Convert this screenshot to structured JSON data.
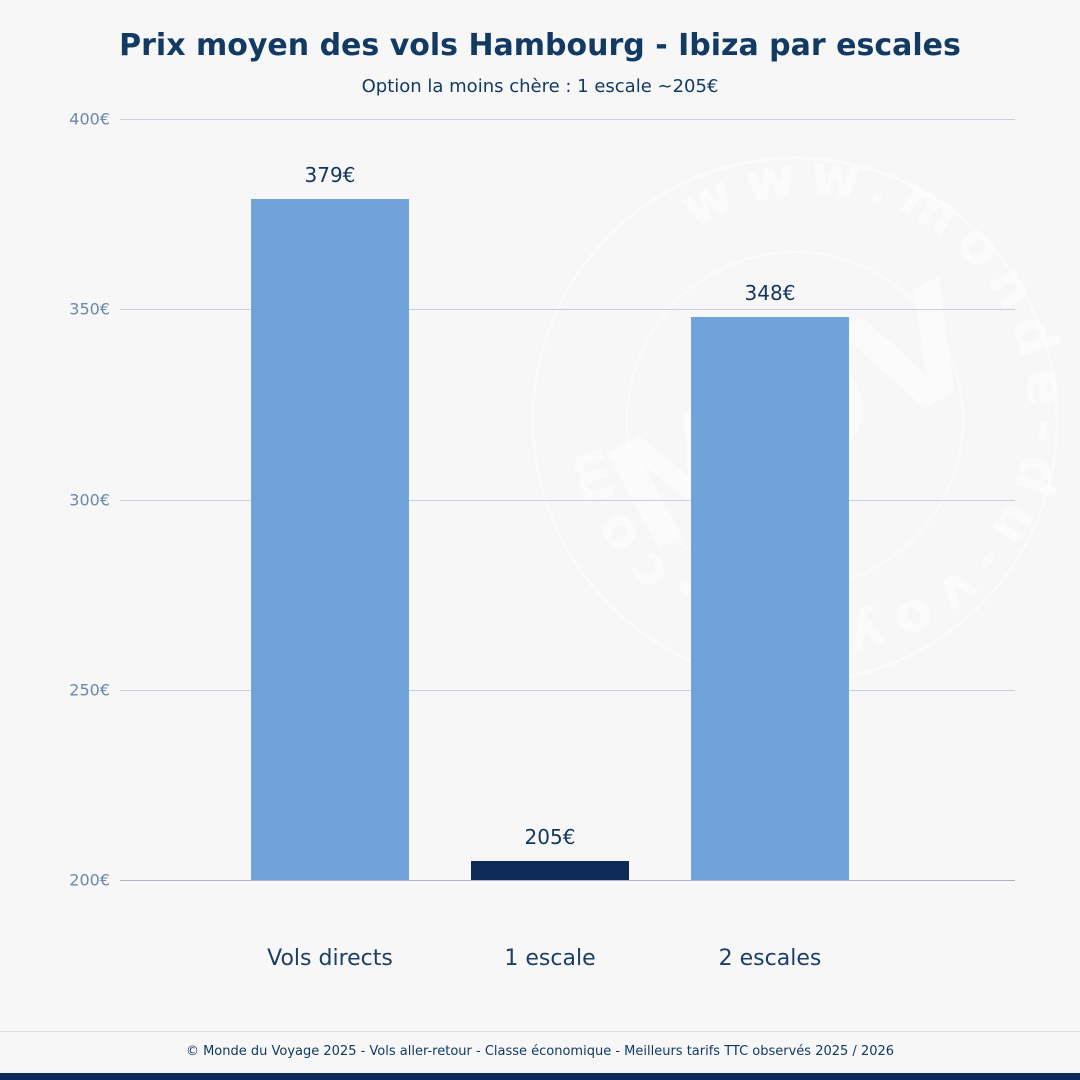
{
  "title": "Prix moyen des vols Hambourg - Ibiza par escales",
  "subtitle": "Option la moins chère : 1 escale ~205€",
  "chart_data": {
    "type": "bar",
    "categories": [
      "Vols directs",
      "1 escale",
      "2 escales"
    ],
    "values": [
      379,
      205,
      348
    ],
    "value_labels": [
      "379€",
      "205€",
      "348€"
    ],
    "bar_colors": [
      "#6fa3d9",
      "#0e2a57",
      "#6fa3d9"
    ],
    "title": "Prix moyen des vols Hambourg - Ibiza par escales",
    "xlabel": "",
    "ylabel": "",
    "ylim": [
      200,
      400
    ],
    "yticks": [
      200,
      250,
      300,
      350,
      400
    ],
    "ytick_labels": [
      "200€",
      "250€",
      "300€",
      "350€",
      "400€"
    ],
    "grid": true,
    "legend": "none"
  },
  "watermark": {
    "circle_text": "www.monde-du-voyage.com",
    "center_text": "MDV"
  },
  "footer": {
    "text": "© Monde du Voyage 2025 - Vols aller-retour - Classe économique - Meilleurs tarifs TTC observés 2025 / 2026"
  },
  "colors": {
    "background": "#f7f7f8",
    "title": "#123a63",
    "grid": "#c7d0dd",
    "axis_labels": "#6d88aa",
    "bar_light_blue": "#6fa3d9",
    "bar_dark_navy": "#0e2a57",
    "bottom_strip": "#0e2a57"
  }
}
